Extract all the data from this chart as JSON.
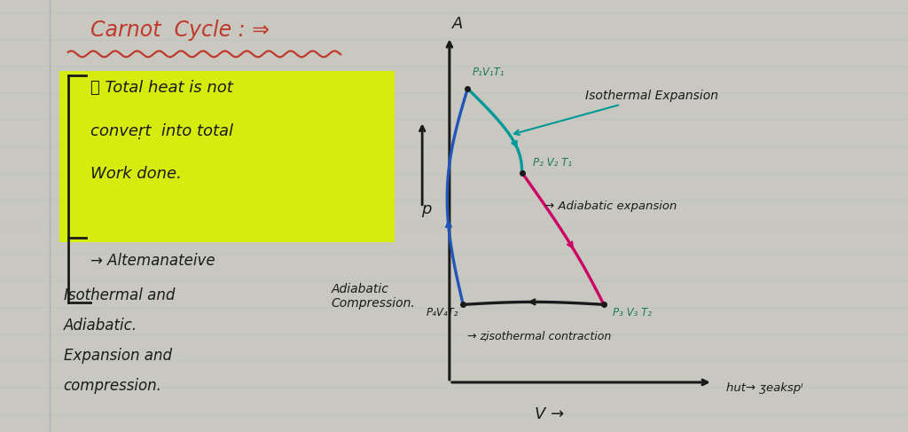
{
  "bg_color": "#c8c8c0",
  "title_text": "Carnot  Cycle : ⇒",
  "title_color": "#c0392b",
  "highlight_color": "#d8f000",
  "dark_color": "#1a1a1a",
  "green_color": "#1a7a50",
  "teal_color": "#009999",
  "pink_color": "#cc0066",
  "blue_color": "#2255bb",
  "navy_color": "#111133",
  "axis_p": "p",
  "axis_v": "V →",
  "label_A": "A",
  "p1_label": "P₁V₁T₁",
  "p2_label": "P₂ V₂ T₁",
  "p3_label": "P₃ V₃ T₂",
  "p4_label": "P₄V₄T₂",
  "iso_exp_label": "Isothermal Expansion",
  "adi_exp_label": "→ Adiabatic expansion",
  "iso_cont_label": "→ ⱬisothermal contraction",
  "adi_comp_label": "Adiabatic\nCompression.",
  "note_bottom": "hut→ ʒeakspᴵ",
  "line1": "␹ Total heat is not",
  "line2": "conveṛt  into total",
  "line3": "Work done.",
  "alt1": "→ Altemanateive",
  "alt2": "Isothermal and",
  "alt3": "Adiabatic.",
  "alt4": "Expansion and",
  "alt5": "compression."
}
